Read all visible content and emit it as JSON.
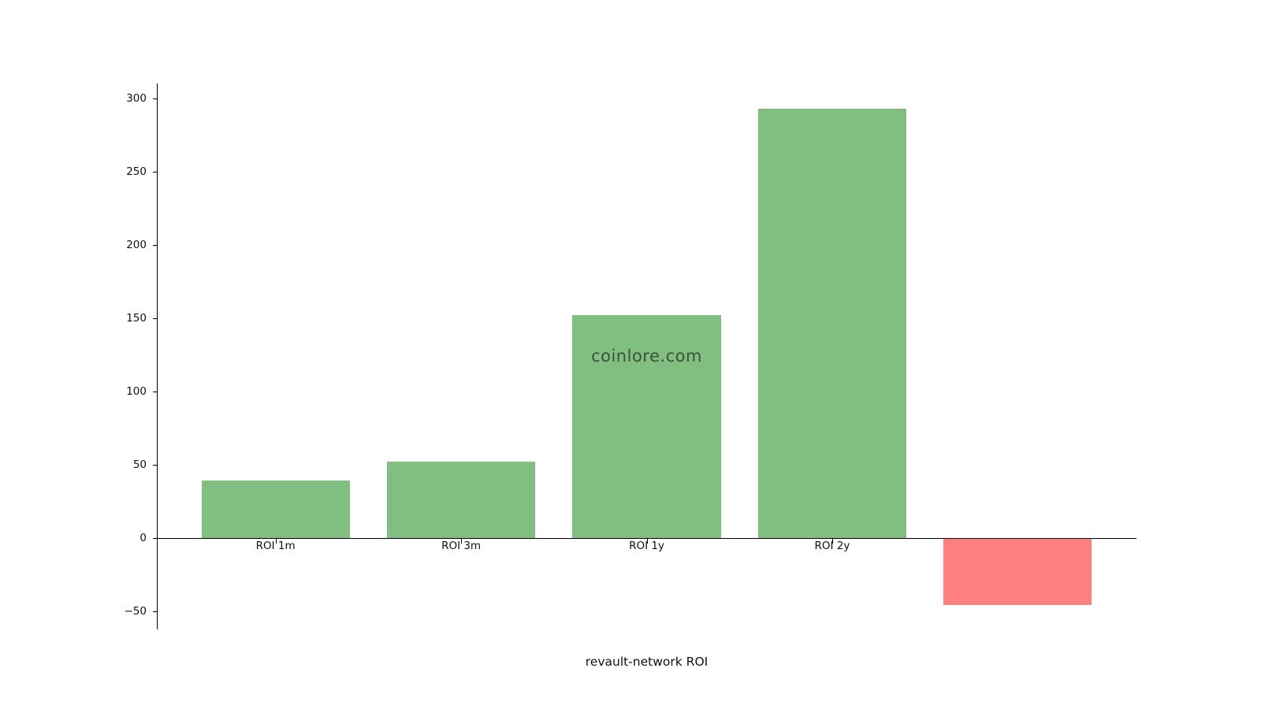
{
  "watermark": "coinlore.com",
  "chart_data": {
    "type": "bar",
    "title": "revault-network ROI",
    "xlabel": "",
    "ylabel": "",
    "categories": [
      "ROI 1m",
      "ROI 3m",
      "ROI 1y",
      "ROI 2y",
      ""
    ],
    "values": [
      39,
      52,
      152,
      293,
      -46
    ],
    "yticks": [
      -50,
      0,
      50,
      100,
      150,
      200,
      250,
      300
    ],
    "ylim": [
      -62.5,
      310.0
    ],
    "grid": false,
    "legend": "none",
    "bar_color_positive": "#80BF80",
    "bar_color_negative": "#FF7F7F",
    "axis_color": "#000000",
    "text_color": "#111111",
    "watermark_color": "#2D372D"
  }
}
